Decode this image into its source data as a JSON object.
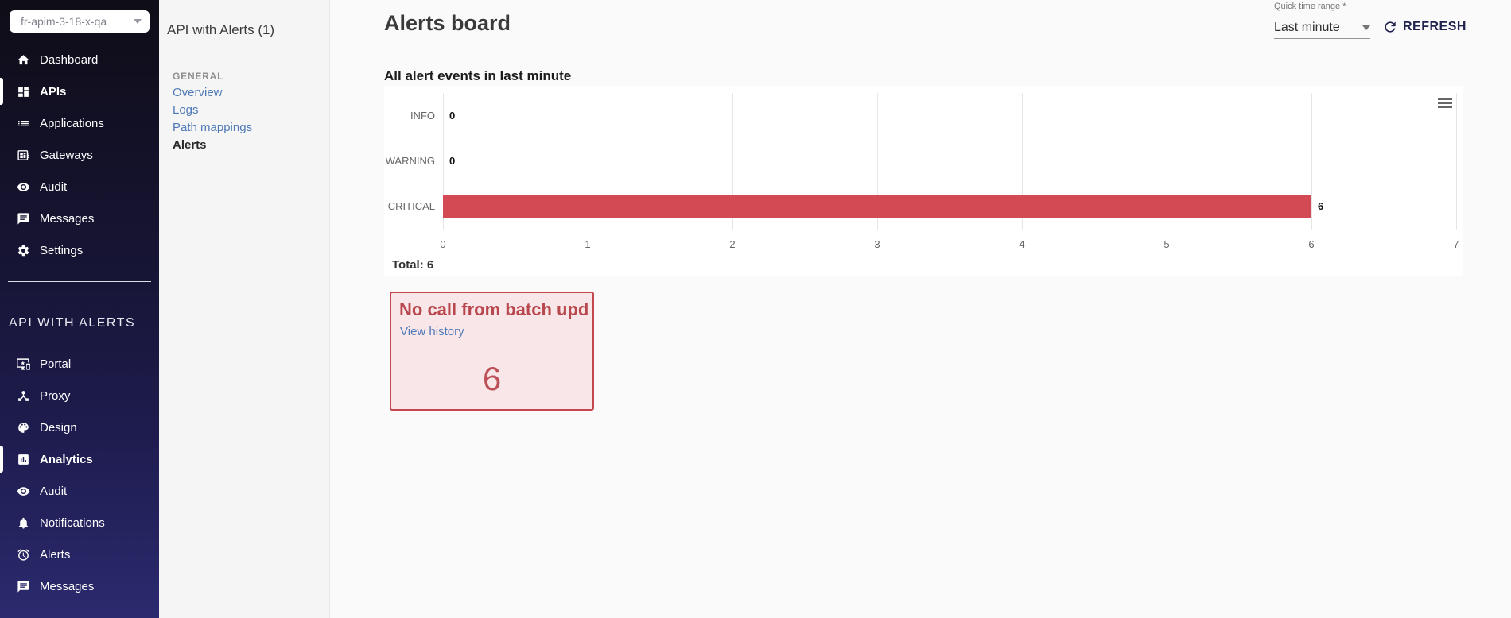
{
  "colors": {
    "bar_red": "#d34a54",
    "alert_border": "#c4494f",
    "alert_bg": "#f8e6e8",
    "alert_text": "#b9484e",
    "link_blue": "#4e79b7",
    "navy": "#1f224d"
  },
  "env_selector": {
    "value": "fr-apim-3-18-x-qa",
    "icon": "chevron-down-icon"
  },
  "sidebar": {
    "items": [
      {
        "label": "Dashboard",
        "icon": "home-icon",
        "active": false
      },
      {
        "label": "APIs",
        "icon": "grid-icon",
        "active": true
      },
      {
        "label": "Applications",
        "icon": "list-icon",
        "active": false
      },
      {
        "label": "Gateways",
        "icon": "board-icon",
        "active": false
      },
      {
        "label": "Audit",
        "icon": "eye-icon",
        "active": false
      },
      {
        "label": "Messages",
        "icon": "message-icon",
        "active": false
      },
      {
        "label": "Settings",
        "icon": "gear-icon",
        "active": false
      }
    ],
    "section_title": "API WITH ALERTS",
    "api_items": [
      {
        "label": "Portal",
        "icon": "devices-icon",
        "active": false
      },
      {
        "label": "Proxy",
        "icon": "hub-icon",
        "active": false
      },
      {
        "label": "Design",
        "icon": "palette-icon",
        "active": false
      },
      {
        "label": "Analytics",
        "icon": "chart-icon",
        "active": true
      },
      {
        "label": "Audit",
        "icon": "eye-icon",
        "active": false
      },
      {
        "label": "Notifications",
        "icon": "bell-icon",
        "active": false
      },
      {
        "label": "Alerts",
        "icon": "alarm-icon",
        "active": false
      },
      {
        "label": "Messages",
        "icon": "message-icon",
        "active": false
      }
    ]
  },
  "subnav": {
    "title": "API with Alerts (1)",
    "section_label": "GENERAL",
    "links": [
      {
        "label": "Overview",
        "active": false
      },
      {
        "label": "Logs",
        "active": false
      },
      {
        "label": "Path mappings",
        "active": false
      },
      {
        "label": "Alerts",
        "active": true
      }
    ]
  },
  "toolbar": {
    "quick_time_label": "Quick time range *",
    "time_range_value": "Last minute",
    "refresh_label": "REFRESH"
  },
  "page": {
    "title": "Alerts board"
  },
  "chart_data": {
    "type": "bar",
    "orientation": "horizontal",
    "title": "All alert events in last minute",
    "categories": [
      "INFO",
      "WARNING",
      "CRITICAL"
    ],
    "values": [
      0,
      0,
      6
    ],
    "data_labels": [
      "0",
      "0",
      "6"
    ],
    "xlim": [
      0,
      7
    ],
    "x_ticks": [
      "0",
      "1",
      "2",
      "3",
      "4",
      "5",
      "6",
      "7"
    ],
    "grid": true,
    "legend": false,
    "bar_color": "#d34a54",
    "total": 6,
    "total_label": "Total: 6",
    "context_menu_icon": "hamburger-menu-icon"
  },
  "alert_card": {
    "title": "No call from batch upda...",
    "history_link": "View history",
    "count": "6"
  }
}
